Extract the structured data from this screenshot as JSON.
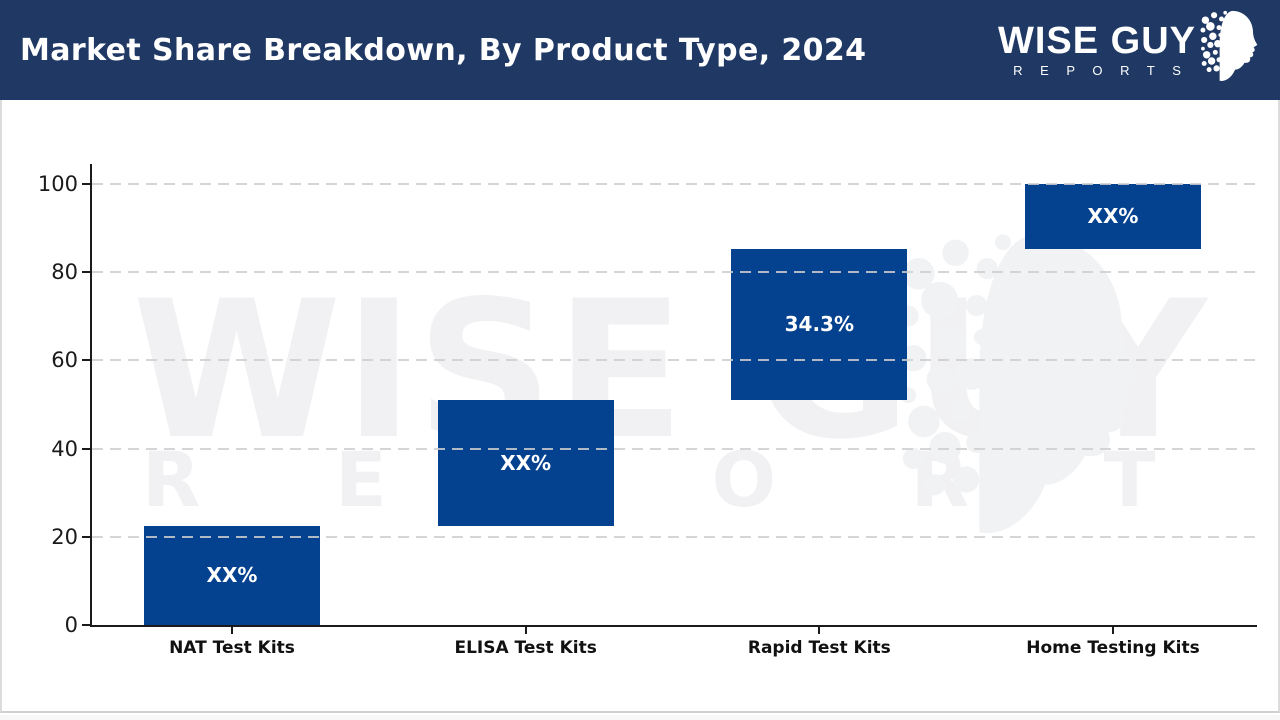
{
  "header": {
    "title": "Market Share Breakdown, By Product Type, 2024",
    "logo": {
      "name_line": "WISE GUY",
      "sub_line": "R E P O R T S"
    }
  },
  "watermark": {
    "name_line": "WISE GUY",
    "sub_line": "R E P O R T S"
  },
  "chart_data": {
    "type": "bar",
    "subtype": "waterfall",
    "title": "Market Share Breakdown, By Product Type, 2024",
    "unit": "percent market share",
    "categories": [
      "NAT Test Kits",
      "ELISA Test Kits",
      "Rapid Test Kits",
      "Home Testing Kits"
    ],
    "segments": [
      {
        "category": "NAT Test Kits",
        "start": 0,
        "end": 22.5,
        "value": 22.5,
        "label": "XX%"
      },
      {
        "category": "ELISA Test Kits",
        "start": 22.5,
        "end": 51.0,
        "value": 28.5,
        "label": "XX%"
      },
      {
        "category": "Rapid Test Kits",
        "start": 51.0,
        "end": 85.3,
        "value": 34.3,
        "label": "34.3%"
      },
      {
        "category": "Home Testing Kits",
        "start": 85.3,
        "end": 100.0,
        "value": 14.7,
        "label": "XX%"
      }
    ],
    "yticks": [
      0,
      20,
      40,
      60,
      80,
      100
    ],
    "ylim": [
      0,
      104.5
    ],
    "grid": true,
    "grid_style": "dashed",
    "legend": "none",
    "bar_color": "#04418F",
    "bar_label_color": "#FFFFFF",
    "axis_color": "#1A1A1A",
    "header_bg": "#1F3864",
    "watermark_color": "#F1F1F3"
  }
}
